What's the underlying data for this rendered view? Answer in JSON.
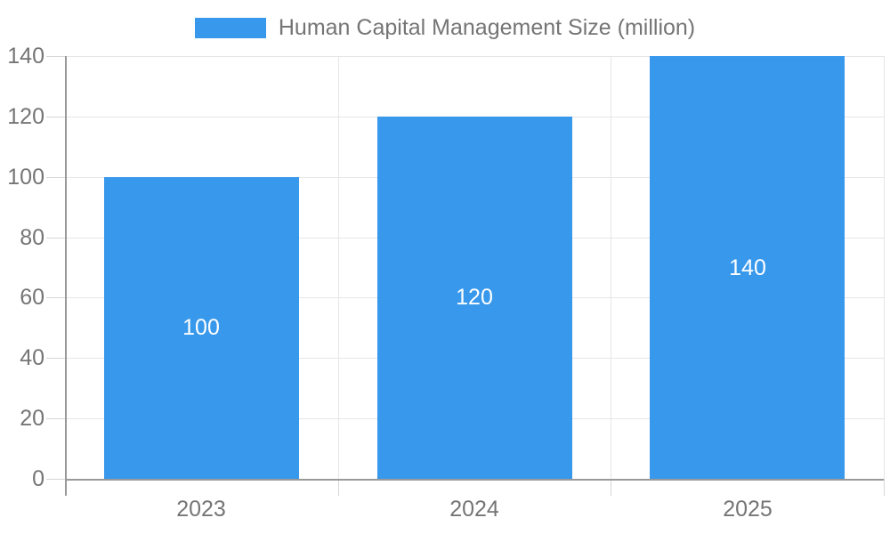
{
  "legend": {
    "label": "Human Capital Management Size (million)",
    "swatch_color": "#3898EC"
  },
  "chart_data": {
    "type": "bar",
    "title": "Human Capital Management Size (million)",
    "categories": [
      "2023",
      "2024",
      "2025"
    ],
    "series": [
      {
        "name": "Human Capital Management Size (million)",
        "values": [
          100,
          120,
          140
        ]
      }
    ],
    "data_labels": [
      "100",
      "120",
      "140"
    ],
    "xlabel": "",
    "ylabel": "",
    "ylim": [
      0,
      140
    ],
    "yticks": [
      0,
      20,
      40,
      60,
      80,
      100,
      120,
      140
    ],
    "grid": "on",
    "legend_position": "top",
    "colors": {
      "bar": "#3898EC",
      "axis_line": "#999999",
      "grid_line": "#e6e6e6",
      "tick_mark": "#d6d6d6",
      "axis_text": "#757575",
      "bar_label_text": "#ffffff",
      "background": "#ffffff"
    }
  }
}
